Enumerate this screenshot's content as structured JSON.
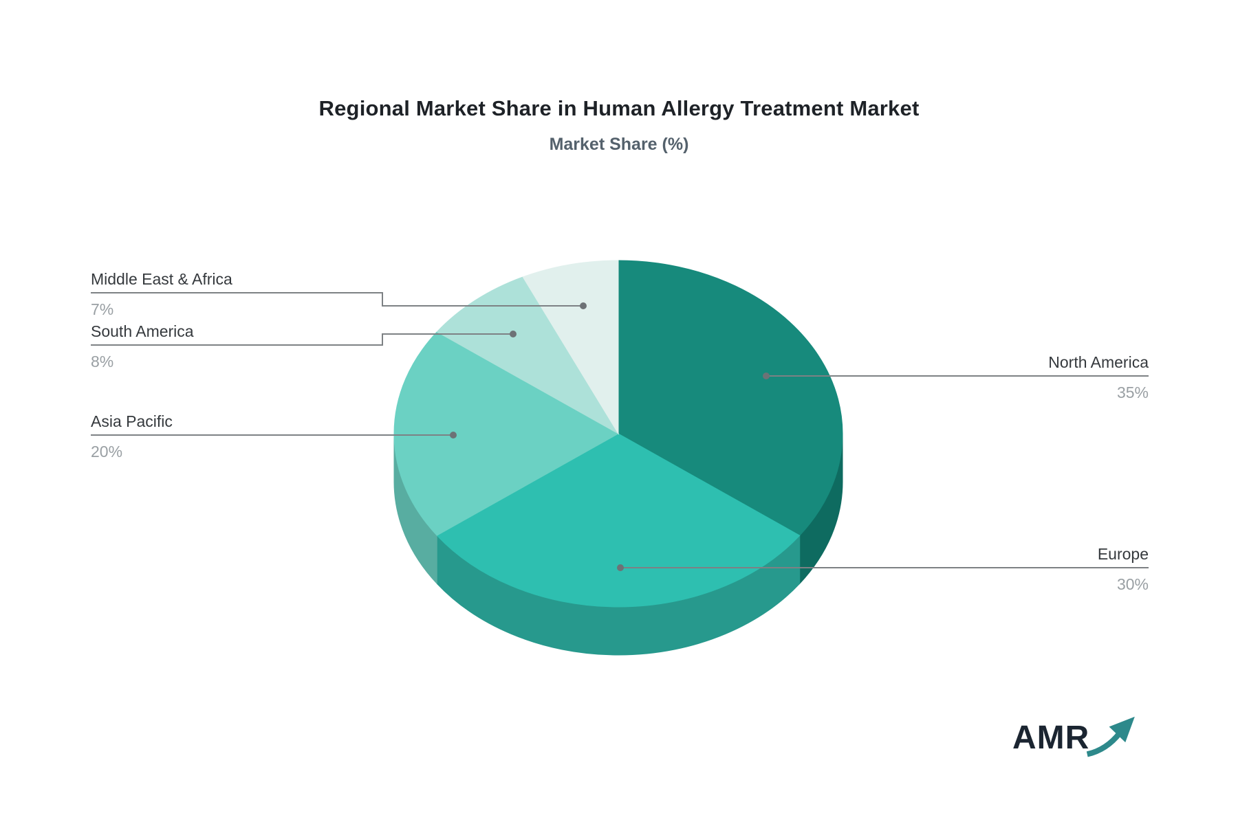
{
  "chart_data": {
    "type": "pie",
    "style": "3d-pie",
    "title": "Regional Market Share in Human Allergy Treatment Market",
    "subtitle": "Market Share (%)",
    "unit": "%",
    "legend_position": "none",
    "labeling": "callout-leader-lines",
    "start_angle_deg": 0,
    "direction": "clockwise",
    "slices": [
      {
        "label": "North America",
        "value": 35,
        "value_label": "35%",
        "color": "#178a7c",
        "side_color": "#0e6b60",
        "callout_side": "right"
      },
      {
        "label": "Europe",
        "value": 30,
        "value_label": "30%",
        "color": "#2ebfb0",
        "side_color": "#27998d",
        "callout_side": "right"
      },
      {
        "label": "Asia Pacific",
        "value": 20,
        "value_label": "20%",
        "color": "#6bd1c3",
        "side_color": "#58ada1",
        "callout_side": "left"
      },
      {
        "label": "South America",
        "value": 8,
        "value_label": "8%",
        "color": "#ade1d9",
        "side_color": null,
        "callout_side": "left"
      },
      {
        "label": "Middle East & Africa",
        "value": 7,
        "value_label": "7%",
        "color": "#e1f0ed",
        "side_color": null,
        "callout_side": "left"
      }
    ],
    "colors": {
      "title": "#1e2227",
      "subtitle": "#54616c",
      "label_text": "#35393d",
      "value_text": "#999fa3",
      "leader_line": "#7d8184",
      "leader_dot": "#6d7276"
    }
  },
  "logo": {
    "text": "AMR",
    "text_color": "#1b2531",
    "arrow_color": "#2d898b"
  }
}
